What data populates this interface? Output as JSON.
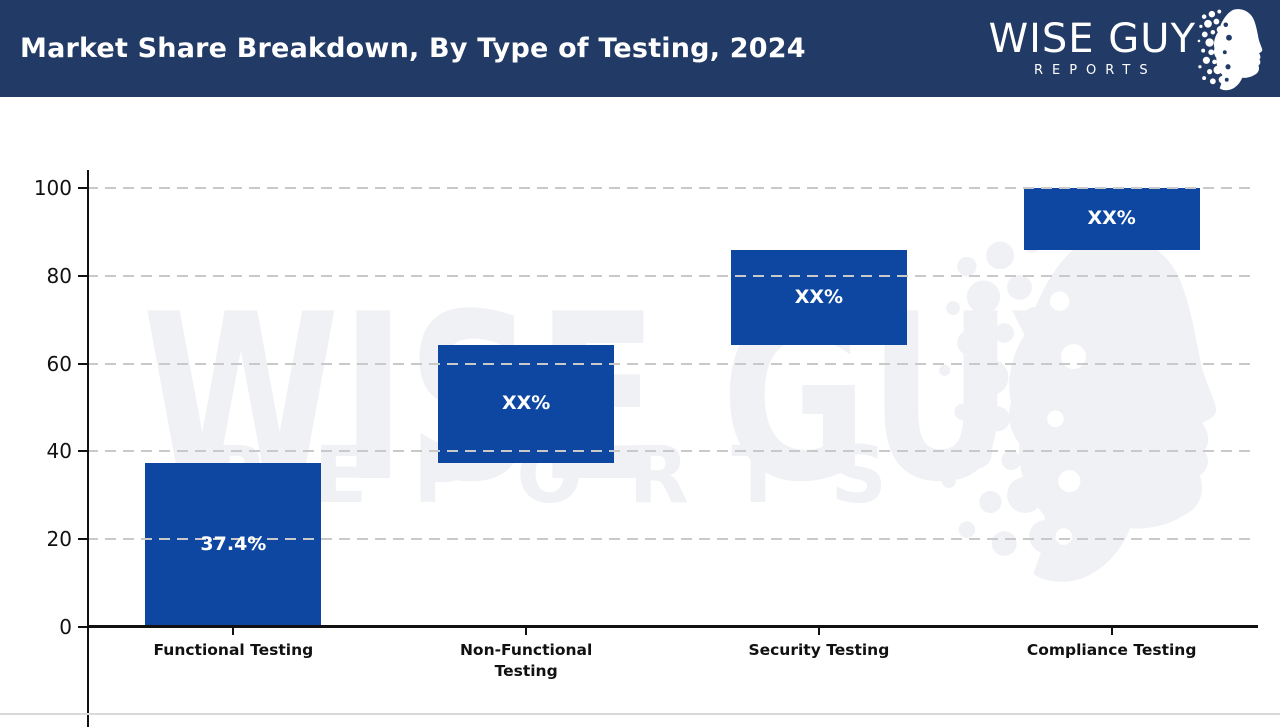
{
  "header": {
    "title": "Market Share Breakdown, By Type of Testing, 2024",
    "logo": {
      "name": "WISE GUY",
      "subtitle": "REPORTS"
    }
  },
  "watermark": {
    "line1": "WISE GUY",
    "line2": "REPORTS"
  },
  "chart_data": {
    "type": "bar",
    "subtype": "floating-waterfall",
    "title": "Market Share Breakdown, By Type of Testing, 2024",
    "categories": [
      "Functional Testing",
      "Non-Functional Testing",
      "Security Testing",
      "Compliance Testing"
    ],
    "segments": [
      {
        "category": "Functional Testing",
        "start": 0,
        "end": 37.4,
        "label": "37.4%"
      },
      {
        "category": "Non-Functional Testing",
        "start": 37.4,
        "end": 64.3,
        "label": "XX%"
      },
      {
        "category": "Security Testing",
        "start": 64.3,
        "end": 85.8,
        "label": "XX%"
      },
      {
        "category": "Compliance Testing",
        "start": 85.8,
        "end": 100,
        "label": "XX%"
      }
    ],
    "ylim": [
      0,
      100
    ],
    "y_ticks": [
      0,
      20,
      40,
      60,
      80,
      100
    ],
    "grid": "dashed-horizontal",
    "legend": "none",
    "bar_color": "#0d47a1",
    "bar_label_color": "#ffffff"
  },
  "colors": {
    "header_bg": "#213a66",
    "bar": "#0d47a1",
    "watermark": "#f0f1f4",
    "gridline": "#c9c9c9",
    "axis": "#111111"
  }
}
